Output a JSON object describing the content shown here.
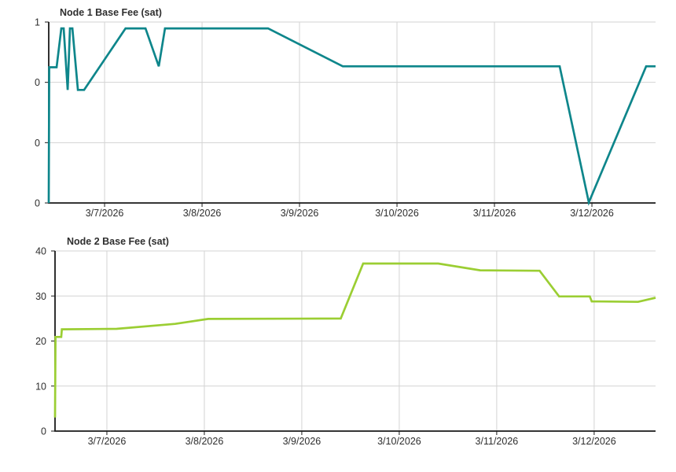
{
  "window": {
    "background_color": "#ffffff"
  },
  "chart_data": [
    {
      "type": "line",
      "title": "Node 1 Base Fee (sat)",
      "x_unit": "days since 3/7/2026",
      "x_range": [
        -0.573,
        5.653
      ],
      "y_range": [
        0,
        1
      ],
      "grid": true,
      "gridline_color": "#d3d3d3",
      "axis_color": "#1a1a1a",
      "label_color": "#2e2e2e",
      "x_ticks": [
        {
          "pos": 0,
          "label": "3/7/2026"
        },
        {
          "pos": 1,
          "label": "3/8/2026"
        },
        {
          "pos": 2,
          "label": "3/9/2026"
        },
        {
          "pos": 3,
          "label": "3/10/2026"
        },
        {
          "pos": 4,
          "label": "3/11/2026"
        },
        {
          "pos": 5,
          "label": "3/12/2026"
        }
      ],
      "y_ticks": [
        {
          "pos": 0,
          "label": "0"
        },
        {
          "pos": 0.3333,
          "label": "0"
        },
        {
          "pos": 0.6667,
          "label": "0"
        },
        {
          "pos": 1,
          "label": "1"
        }
      ],
      "series": [
        {
          "name": "Node 1 Base Fee",
          "color": "#0e868b",
          "points": [
            [
              -0.573,
              0.0
            ],
            [
              -0.568,
              0.75
            ],
            [
              -0.492,
              0.75
            ],
            [
              -0.444,
              0.965
            ],
            [
              -0.42,
              0.965
            ],
            [
              -0.379,
              0.625
            ],
            [
              -0.355,
              0.965
            ],
            [
              -0.33,
              0.965
            ],
            [
              -0.274,
              0.625
            ],
            [
              -0.21,
              0.625
            ],
            [
              0.215,
              0.965
            ],
            [
              0.42,
              0.965
            ],
            [
              0.556,
              0.755
            ],
            [
              0.62,
              0.965
            ],
            [
              1.677,
              0.965
            ],
            [
              2.444,
              0.755
            ],
            [
              4.669,
              0.755
            ],
            [
              4.968,
              0.003
            ],
            [
              5.556,
              0.755
            ],
            [
              5.653,
              0.755
            ]
          ]
        }
      ]
    },
    {
      "type": "line",
      "title": "Node 2 Base Fee (sat)",
      "x_unit": "days since 3/7/2026",
      "x_range": [
        -0.532,
        5.63
      ],
      "y_range": [
        0,
        40
      ],
      "grid": true,
      "gridline_color": "#d3d3d3",
      "axis_color": "#1a1a1a",
      "label_color": "#2e2e2e",
      "x_ticks": [
        {
          "pos": 0,
          "label": "3/7/2026"
        },
        {
          "pos": 1,
          "label": "3/8/2026"
        },
        {
          "pos": 2,
          "label": "3/9/2026"
        },
        {
          "pos": 3,
          "label": "3/10/2026"
        },
        {
          "pos": 4,
          "label": "3/11/2026"
        },
        {
          "pos": 5,
          "label": "3/12/2026"
        }
      ],
      "y_ticks": [
        {
          "pos": 0,
          "label": "0"
        },
        {
          "pos": 10,
          "label": "10"
        },
        {
          "pos": 20,
          "label": "20"
        },
        {
          "pos": 30,
          "label": "30"
        },
        {
          "pos": 40,
          "label": "40"
        }
      ],
      "series": [
        {
          "name": "Node 2 Base Fee",
          "color": "#9bce33",
          "points": [
            [
              -0.532,
              3.0
            ],
            [
              -0.527,
              20.9
            ],
            [
              -0.468,
              20.9
            ],
            [
              -0.462,
              22.6
            ],
            [
              0.1,
              22.7
            ],
            [
              0.7,
              23.8
            ],
            [
              1.04,
              24.9
            ],
            [
              2.4,
              25.0
            ],
            [
              2.63,
              37.2
            ],
            [
              3.4,
              37.2
            ],
            [
              3.83,
              35.7
            ],
            [
              4.44,
              35.6
            ],
            [
              4.64,
              29.9
            ],
            [
              4.955,
              29.9
            ],
            [
              4.975,
              28.8
            ],
            [
              5.45,
              28.7
            ],
            [
              5.63,
              29.6
            ]
          ]
        }
      ]
    }
  ]
}
